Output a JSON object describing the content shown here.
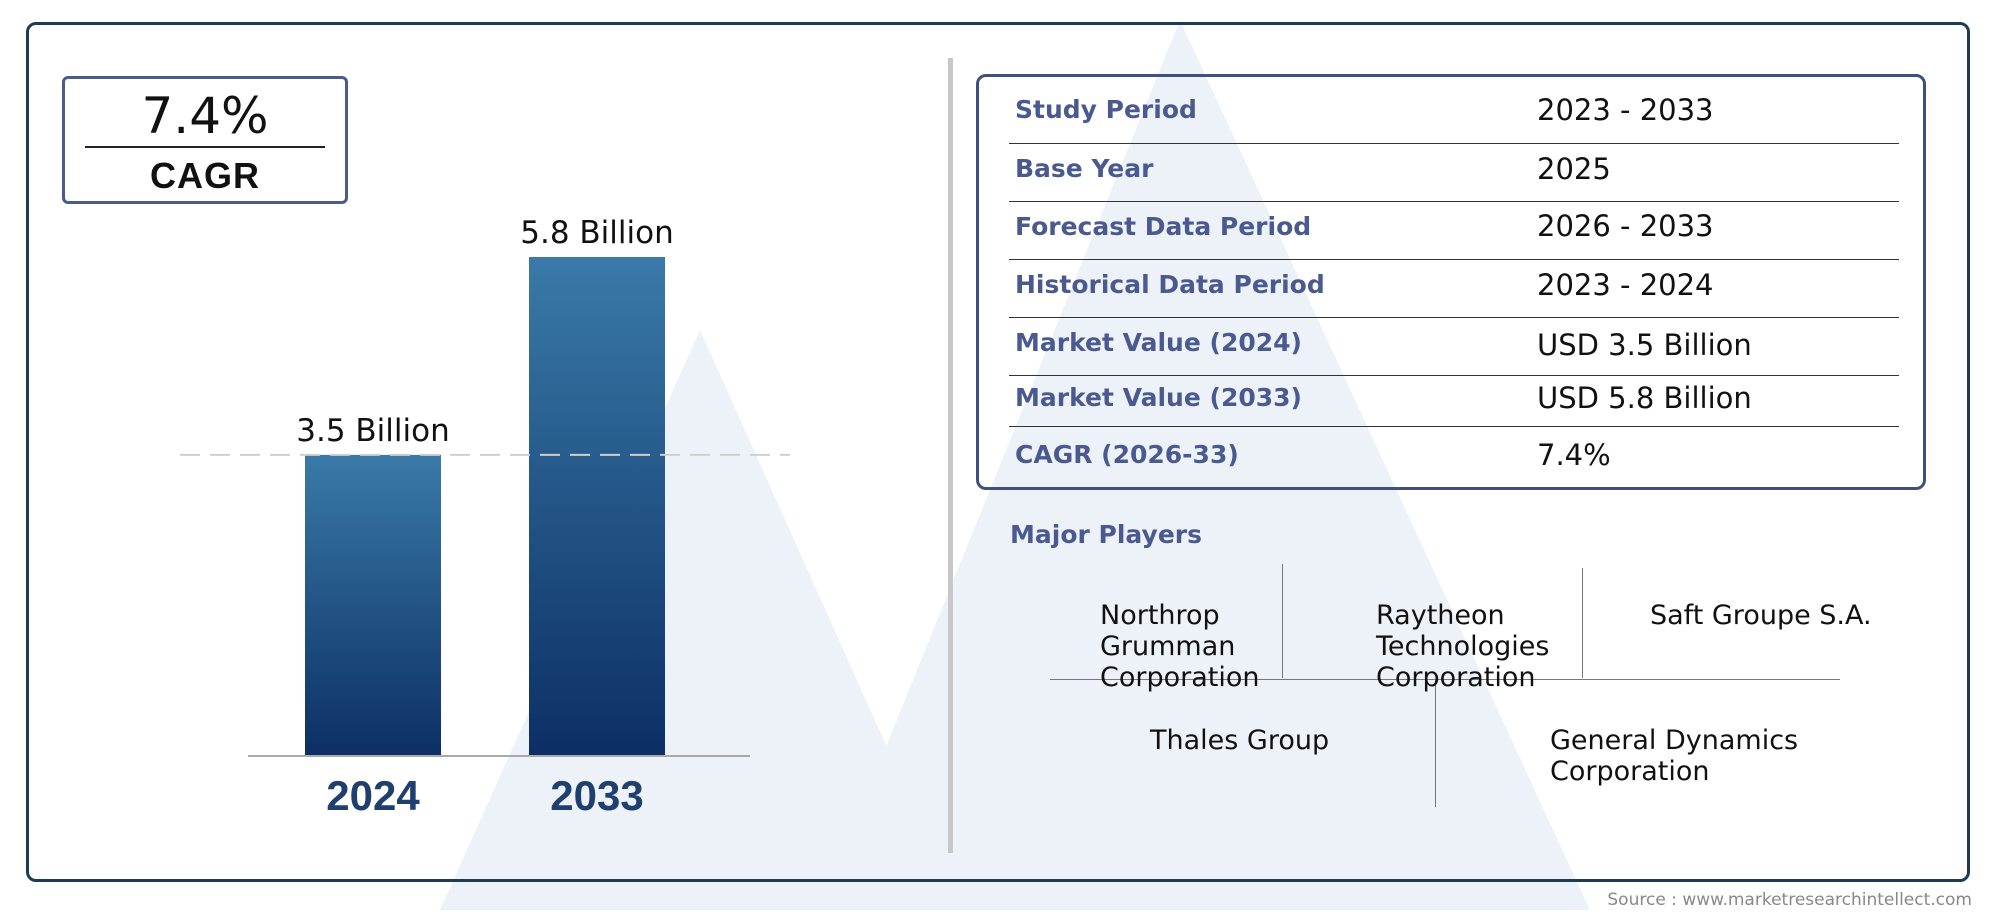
{
  "colors": {
    "frame": "#1d3b55",
    "accent": "#4a5a90",
    "bar_top": "#3a7aa8",
    "bar_bottom": "#0c2f65",
    "year_label": "#1f3f6f",
    "watermark": "#edf2f8"
  },
  "cagr": {
    "value": "7.4%",
    "label": "CAGR"
  },
  "chart_data": {
    "type": "bar",
    "categories": [
      "2024",
      "2033"
    ],
    "values": [
      3.5,
      5.8
    ],
    "data_labels": [
      "3.5 Billion",
      "5.8 Billion"
    ],
    "reference_line_value": 3.5,
    "title": "",
    "xlabel": "",
    "ylabel": "",
    "ylim": [
      0,
      5.8
    ],
    "grid": false
  },
  "info": [
    {
      "label": "Study Period",
      "value": "2023 - 2033"
    },
    {
      "label": "Base Year",
      "value": "2025"
    },
    {
      "label": "Forecast Data Period",
      "value": "2026 - 2033"
    },
    {
      "label": "Historical Data Period",
      "value": "2023 - 2024"
    },
    {
      "label": "Market Value (2024)",
      "value": "USD 3.5 Billion"
    },
    {
      "label": "Market Value (2033)",
      "value": "USD 5.8 Billion"
    },
    {
      "label": "CAGR (2026-33)",
      "value": "7.4%"
    }
  ],
  "players_title": "Major Players",
  "players": [
    "Northrop\nGrumman\nCorporation",
    "Raytheon\nTechnologies\nCorporation",
    "Saft Groupe S.A.",
    "Thales Group",
    "General Dynamics\nCorporation"
  ],
  "source": "Source : www.marketresearchintellect.com"
}
